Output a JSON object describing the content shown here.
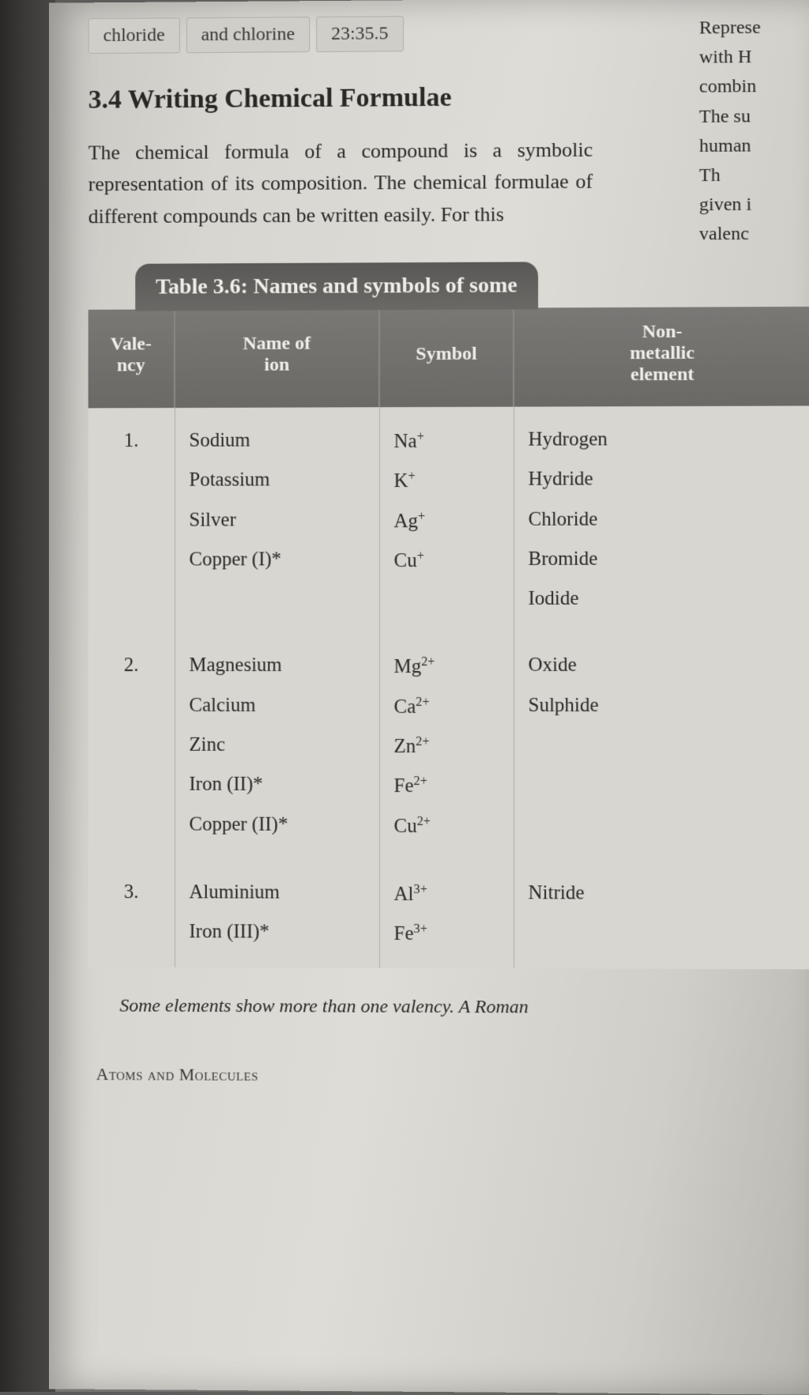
{
  "top_row": {
    "cell1": "chloride",
    "cell2": "and chlorine",
    "cell3": "23:35.5"
  },
  "right_fragments": [
    "Represe",
    "with H",
    "combin",
    "The su",
    "human",
    "Th",
    "given i",
    "valenc"
  ],
  "section": {
    "number": "3.4",
    "title": "Writing Chemical Formulae",
    "body": "The chemical formula of a compound is a symbolic representation of its composition. The chemical formulae of different compounds can be written easily. For this"
  },
  "table": {
    "caption": "Table 3.6: Names and symbols of some",
    "headers": {
      "valency": "Vale-\nncy",
      "name": "Name of\nion",
      "symbol": "Symbol",
      "nonmetal": "Non-\nmetallic\nelement"
    },
    "groups": [
      {
        "valency": "1.",
        "rows": [
          {
            "name": "Sodium",
            "symbol": "Na",
            "charge": "+",
            "nonmetal": "Hydrogen"
          },
          {
            "name": "Potassium",
            "symbol": "K",
            "charge": "+",
            "nonmetal": "Hydride"
          },
          {
            "name": "Silver",
            "symbol": "Ag",
            "charge": "+",
            "nonmetal": "Chloride"
          },
          {
            "name": "Copper (I)*",
            "symbol": "Cu",
            "charge": "+",
            "nonmetal": "Bromide"
          },
          {
            "name": "",
            "symbol": "",
            "charge": "",
            "nonmetal": "Iodide"
          }
        ]
      },
      {
        "valency": "2.",
        "rows": [
          {
            "name": "Magnesium",
            "symbol": "Mg",
            "charge": "2+",
            "nonmetal": "Oxide"
          },
          {
            "name": "Calcium",
            "symbol": "Ca",
            "charge": "2+",
            "nonmetal": "Sulphide"
          },
          {
            "name": "Zinc",
            "symbol": "Zn",
            "charge": "2+",
            "nonmetal": ""
          },
          {
            "name": "Iron (II)*",
            "symbol": "Fe",
            "charge": "2+",
            "nonmetal": ""
          },
          {
            "name": "Copper (II)*",
            "symbol": "Cu",
            "charge": "2+",
            "nonmetal": ""
          }
        ]
      },
      {
        "valency": "3.",
        "rows": [
          {
            "name": "Aluminium",
            "symbol": "Al",
            "charge": "3+",
            "nonmetal": "Nitride"
          },
          {
            "name": "Iron (III)*",
            "symbol": "Fe",
            "charge": "3+",
            "nonmetal": ""
          }
        ]
      }
    ]
  },
  "footnote": "Some elements show more than one valency. A Roman",
  "footer": "Atoms and Molecules"
}
